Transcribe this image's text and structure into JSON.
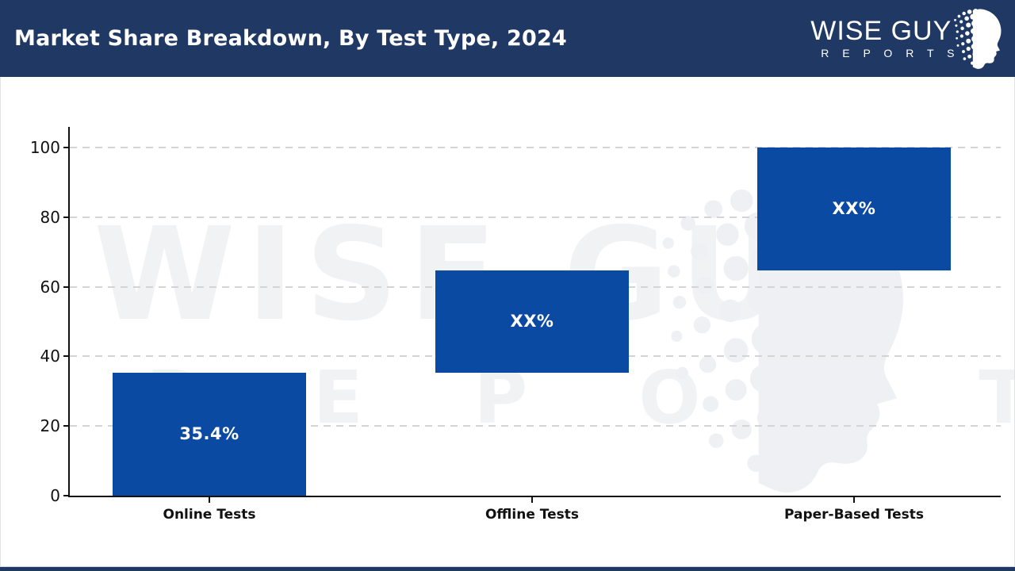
{
  "header": {
    "title": "Market Share Breakdown, By Test Type, 2024",
    "bg_color": "#1f3864",
    "logo": {
      "name": "WISE GUY",
      "tagline": "R E P O R T S",
      "icon": "head-profile-dots-icon"
    }
  },
  "watermark": {
    "name": "WISE GUY",
    "tagline": "R E P O R T S",
    "icon": "head-profile-dots-icon"
  },
  "chart_data": {
    "type": "bar",
    "subtype": "waterfall",
    "title": "Market Share Breakdown, By Test Type, 2024",
    "categories": [
      "Online Tests",
      "Offline Tests",
      "Paper-Based Tests"
    ],
    "bars": [
      {
        "category": "Online Tests",
        "start": 0,
        "end": 35.4,
        "label": "35.4%"
      },
      {
        "category": "Offline Tests",
        "start": 35.4,
        "end": 64.8,
        "label": "XX%"
      },
      {
        "category": "Paper-Based Tests",
        "start": 64.8,
        "end": 100,
        "label": "XX%"
      }
    ],
    "xlabel": "",
    "ylabel": "",
    "y_ticks": [
      0,
      20,
      40,
      60,
      80,
      100
    ],
    "ylim": [
      0,
      106
    ],
    "grid": "horizontal-dashed",
    "legend": "none",
    "bar_color": "#0b4aa2",
    "bar_label_color": "#ffffff",
    "gridline_color": "#d4d4d4",
    "axis_color": "#111111"
  }
}
